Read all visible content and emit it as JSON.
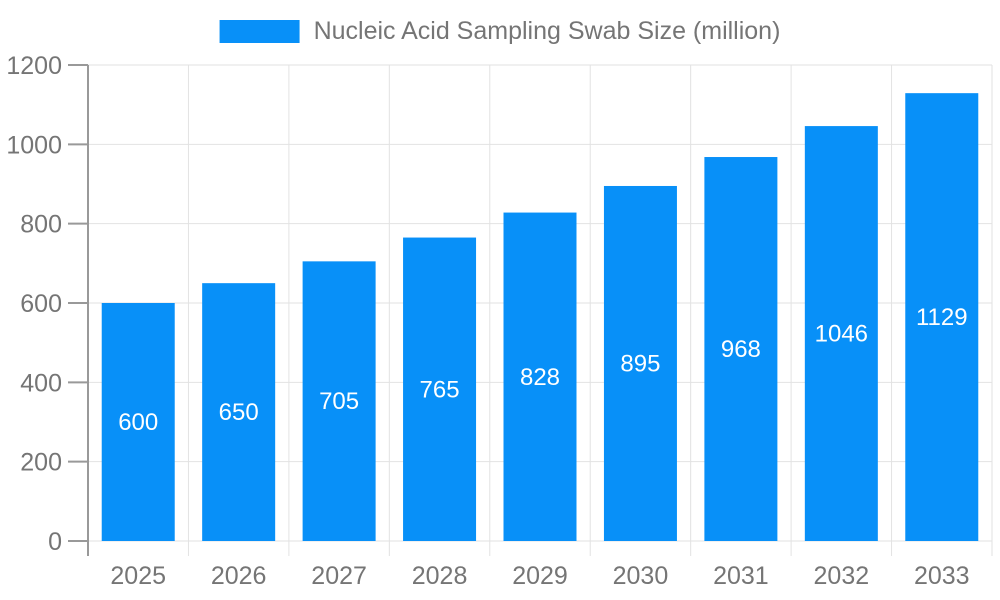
{
  "legend": {
    "label": "Nucleic Acid Sampling Swab Size (million)"
  },
  "chart_data": {
    "type": "bar",
    "title": "Nucleic Acid Sampling Swab Size (million)",
    "categories": [
      "2025",
      "2026",
      "2027",
      "2028",
      "2029",
      "2030",
      "2031",
      "2032",
      "2033"
    ],
    "values": [
      600,
      650,
      705,
      765,
      828,
      895,
      968,
      1046,
      1129
    ],
    "xlabel": "",
    "ylabel": "",
    "ylim": [
      0,
      1200
    ],
    "ytick_step": 200,
    "ytick_labels": [
      "0",
      "200",
      "400",
      "600",
      "800",
      "1000",
      "1200"
    ],
    "grid": true,
    "legend_position": "top",
    "bar_color": "#0890f8",
    "bar_label_color": "#ffffff",
    "axis_text_color": "#757575",
    "grid_color": "#e2e2e2",
    "axis_line_color": "#999999",
    "background_color": "#ffffff"
  }
}
